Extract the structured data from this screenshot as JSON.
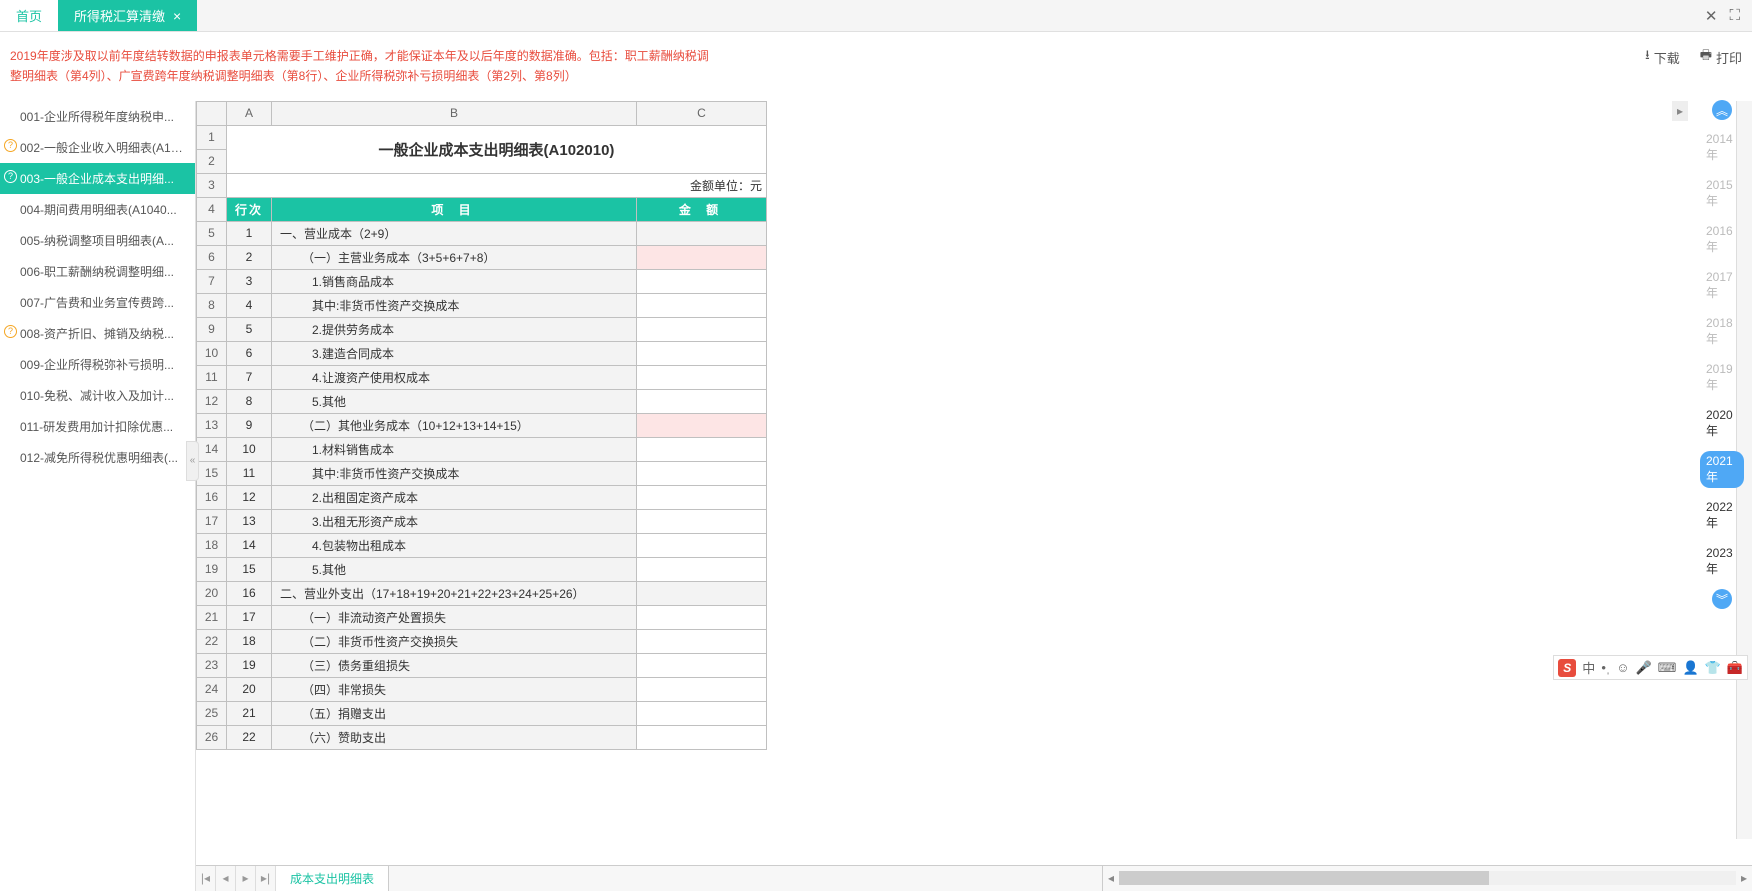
{
  "tabs": {
    "home": "首页",
    "active": "所得税汇算清缴"
  },
  "notice": "2019年度涉及取以前年度结转数据的申报表单元格需要手工维护正确，才能保证本年及以后年度的数据准确。包括：职工薪酬纳税调整明细表（第4列）、广宣费跨年度纳税调整明细表（第8行）、企业所得税弥补亏损明细表（第2列、第8列）",
  "actions": {
    "download": "下载",
    "print": "打印"
  },
  "sidebar": [
    {
      "q": false,
      "label": "001-企业所得税年度纳税申..."
    },
    {
      "q": true,
      "label": "002-一般企业收入明细表(A10..."
    },
    {
      "q": true,
      "label": "003-一般企业成本支出明细..."
    },
    {
      "q": false,
      "label": "004-期间费用明细表(A1040..."
    },
    {
      "q": false,
      "label": "005-纳税调整项目明细表(A..."
    },
    {
      "q": false,
      "label": "006-职工薪酬纳税调整明细..."
    },
    {
      "q": false,
      "label": "007-广告费和业务宣传费跨..."
    },
    {
      "q": true,
      "label": "008-资产折旧、摊销及纳税..."
    },
    {
      "q": false,
      "label": "009-企业所得税弥补亏损明..."
    },
    {
      "q": false,
      "label": "010-免税、减计收入及加计..."
    },
    {
      "q": false,
      "label": "011-研发费用加计扣除优惠..."
    },
    {
      "q": false,
      "label": "012-减免所得税优惠明细表(..."
    }
  ],
  "sidebar_selected": 2,
  "sheet": {
    "columns": [
      "A",
      "B",
      "C"
    ],
    "title": "一般企业成本支出明细表(A102010)",
    "unit_label": "金额单位：元",
    "head": {
      "lineNo": "行次",
      "item": "项     目",
      "amount": "金   额"
    },
    "rows": [
      {
        "n": "1",
        "t": "一、营业成本（2+9）",
        "cls": "item",
        "amt_cls": "gray"
      },
      {
        "n": "2",
        "t": "（一）主营业务成本（3+5+6+7+8）",
        "cls": "ind1",
        "amt_cls": "pink"
      },
      {
        "n": "3",
        "t": "1.销售商品成本",
        "cls": "ind2",
        "amt_cls": ""
      },
      {
        "n": "4",
        "t": "其中:非货币性资产交换成本",
        "cls": "ind2",
        "amt_cls": ""
      },
      {
        "n": "5",
        "t": "2.提供劳务成本",
        "cls": "ind2",
        "amt_cls": ""
      },
      {
        "n": "6",
        "t": "3.建造合同成本",
        "cls": "ind2",
        "amt_cls": ""
      },
      {
        "n": "7",
        "t": "4.让渡资产使用权成本",
        "cls": "ind2",
        "amt_cls": ""
      },
      {
        "n": "8",
        "t": "5.其他",
        "cls": "ind2",
        "amt_cls": ""
      },
      {
        "n": "9",
        "t": "（二）其他业务成本（10+12+13+14+15）",
        "cls": "ind1",
        "amt_cls": "pink"
      },
      {
        "n": "10",
        "t": "1.材料销售成本",
        "cls": "ind2",
        "amt_cls": ""
      },
      {
        "n": "11",
        "t": "其中:非货币性资产交换成本",
        "cls": "ind2",
        "amt_cls": ""
      },
      {
        "n": "12",
        "t": "2.出租固定资产成本",
        "cls": "ind2",
        "amt_cls": ""
      },
      {
        "n": "13",
        "t": "3.出租无形资产成本",
        "cls": "ind2",
        "amt_cls": ""
      },
      {
        "n": "14",
        "t": "4.包装物出租成本",
        "cls": "ind2",
        "amt_cls": ""
      },
      {
        "n": "15",
        "t": "5.其他",
        "cls": "ind2",
        "amt_cls": ""
      },
      {
        "n": "16",
        "t": "二、营业外支出（17+18+19+20+21+22+23+24+25+26）",
        "cls": "item",
        "amt_cls": "gray"
      },
      {
        "n": "17",
        "t": "（一）非流动资产处置损失",
        "cls": "ind1",
        "amt_cls": ""
      },
      {
        "n": "18",
        "t": "（二）非货币性资产交换损失",
        "cls": "ind1",
        "amt_cls": ""
      },
      {
        "n": "19",
        "t": "（三）债务重组损失",
        "cls": "ind1",
        "amt_cls": ""
      },
      {
        "n": "20",
        "t": "（四）非常损失",
        "cls": "ind1",
        "amt_cls": ""
      },
      {
        "n": "21",
        "t": "（五）捐赠支出",
        "cls": "ind1",
        "amt_cls": ""
      },
      {
        "n": "22",
        "t": "（六）赞助支出",
        "cls": "ind1",
        "amt_cls": ""
      }
    ],
    "bottom_tab": "成本支出明细表"
  },
  "years": [
    "2014年",
    "2015年",
    "2016年",
    "2017年",
    "2018年",
    "2019年",
    "2020年",
    "2021年",
    "2022年",
    "2023年"
  ],
  "year_dark_from": 6,
  "year_selected": 7,
  "ime": {
    "badge": "S",
    "lang": "中"
  },
  "colors": {
    "brand": "#1bc3a4",
    "warning_text": "#e84c3d",
    "year_active": "#4fa8f5",
    "pink_cell": "#fde5e5",
    "gray_cell": "#f3f3f3"
  }
}
